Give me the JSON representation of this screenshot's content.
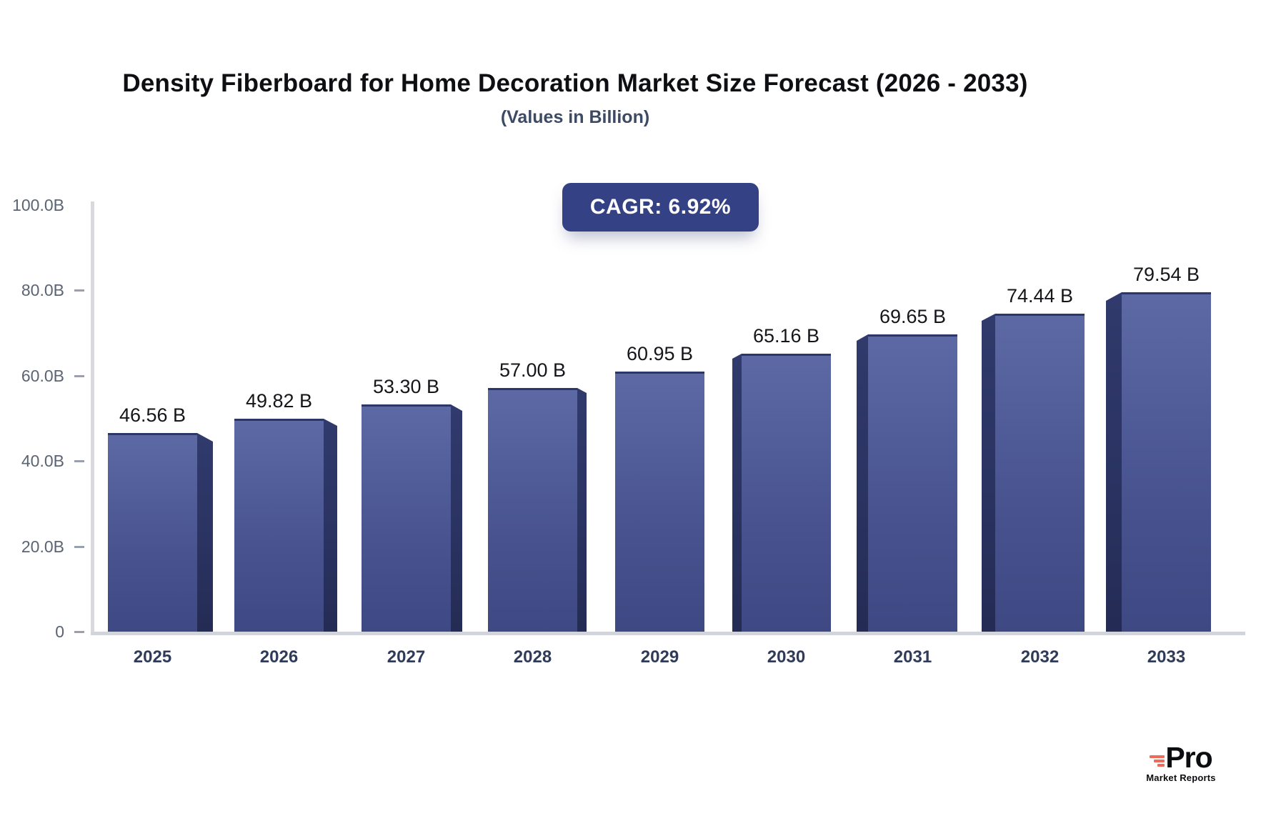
{
  "header": {
    "title": "Density Fiberboard for Home Decoration Market Size Forecast (2026 - 2033)",
    "subtitle": "(Values in Billion)",
    "cagr_label": "CAGR: 6.92%"
  },
  "chart_data": {
    "type": "bar",
    "title": "Density Fiberboard for Home Decoration Market Size Forecast (2026 - 2033)",
    "subtitle": "(Values in Billion)",
    "annotation": "CAGR: 6.92%",
    "categories": [
      "2025",
      "2026",
      "2027",
      "2028",
      "2029",
      "2030",
      "2031",
      "2032",
      "2033"
    ],
    "values": [
      46.56,
      49.82,
      53.3,
      57.0,
      60.95,
      65.16,
      69.65,
      74.44,
      79.54
    ],
    "value_labels": [
      "46.56 B",
      "49.82 B",
      "53.30 B",
      "57.00 B",
      "60.95 B",
      "65.16 B",
      "69.65 B",
      "74.44 B",
      "79.54 B"
    ],
    "xlabel": "",
    "ylabel": "",
    "ylim": [
      0,
      100
    ],
    "y_ticks": [
      {
        "value": 100,
        "label": "100.0B",
        "dash": false
      },
      {
        "value": 80,
        "label": "80.0B",
        "dash": true
      },
      {
        "value": 60,
        "label": "60.0B",
        "dash": true
      },
      {
        "value": 40,
        "label": "40.0B",
        "dash": true
      },
      {
        "value": 20,
        "label": "20.0B",
        "dash": true
      },
      {
        "value": 0,
        "label": "0",
        "dash": true
      }
    ],
    "grid": false,
    "legend": "none",
    "style": "3d-perspective-bars"
  },
  "colors": {
    "bar_front_top": "#5c69a4",
    "bar_front_bottom": "#3e4984",
    "bar_side": "#2a3361",
    "bar_top_edge": "#2d3767",
    "badge_bg": "#344184",
    "badge_text": "#ffffff",
    "axis_gray": "#d1d4da",
    "tick_text": "#5b6474",
    "year_text": "#2f3b58",
    "logo_stripe_red": "#ef6a5b"
  },
  "branding": {
    "logo_main": "Pro",
    "logo_sub": "Market Reports"
  }
}
